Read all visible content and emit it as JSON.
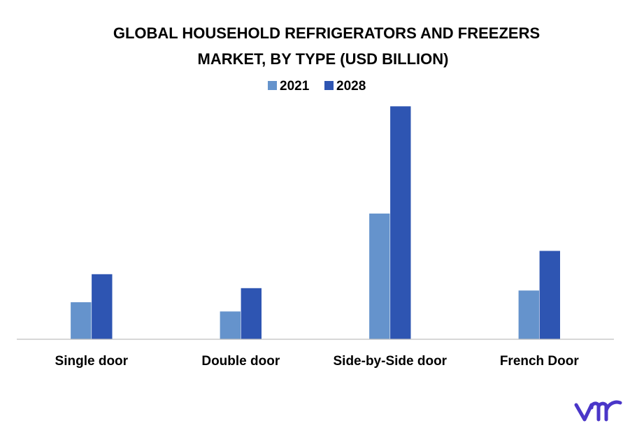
{
  "chart_data": {
    "type": "bar",
    "title_lines": [
      "GLOBAL HOUSEHOLD REFRIGERATORS AND FREEZERS",
      "MARKET, BY TYPE (USD BILLION)"
    ],
    "categories": [
      "Single door",
      "Double door",
      "Side-by-Side door",
      "French Door"
    ],
    "series": [
      {
        "name": "2021",
        "values": [
          16,
          12,
          54,
          21
        ]
      },
      {
        "name": "2028",
        "values": [
          28,
          22,
          100,
          38
        ]
      }
    ],
    "ylim": [
      0,
      100
    ],
    "grid": false,
    "legend_position": "top"
  },
  "colors": {
    "series_2021": "#6593CC",
    "series_2028": "#2E55B2",
    "axis": "#BFBFBF",
    "logo": "#4A36C8"
  },
  "logo": {
    "text": "vmr",
    "icon": "vmr-logo"
  }
}
